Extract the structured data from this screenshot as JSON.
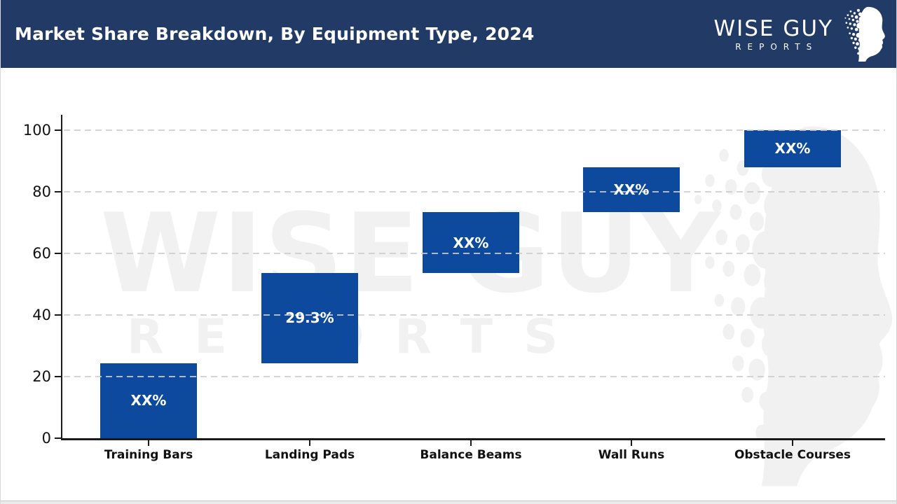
{
  "header": {
    "title": "Market Share Breakdown, By Equipment Type, 2024",
    "logo": {
      "line1": "WISE GUY",
      "line2": "REPORTS"
    }
  },
  "watermark": {
    "line1": "WISE GUY",
    "line2": "REPORTS"
  },
  "colors": {
    "header_bg": "#213A66",
    "title_text": "#FFFFFF",
    "bar": "#0D4A9E",
    "bar_label": "#FFFFFF",
    "axis": "#1A1A1A",
    "grid": "#D4D4D4",
    "watermark": "#F1F1F1"
  },
  "chart_data": {
    "type": "bar",
    "subtype": "floating-waterfall",
    "title": "Market Share Breakdown, By Equipment Type, 2024",
    "categories": [
      "Training Bars",
      "Landing Pads",
      "Balance Beams",
      "Wall Runs",
      "Obstacle Courses"
    ],
    "bars": [
      {
        "category": "Training Bars",
        "start": 0,
        "end": 24.4,
        "value": 24.4,
        "label": "XX%"
      },
      {
        "category": "Landing Pads",
        "start": 24.4,
        "end": 53.7,
        "value": 29.3,
        "label": "29.3%"
      },
      {
        "category": "Balance Beams",
        "start": 53.7,
        "end": 73.3,
        "value": 19.6,
        "label": "XX%"
      },
      {
        "category": "Wall Runs",
        "start": 73.3,
        "end": 88.0,
        "value": 14.7,
        "label": "XX%"
      },
      {
        "category": "Obstacle Courses",
        "start": 88.0,
        "end": 100.0,
        "value": 12.0,
        "label": "XX%"
      }
    ],
    "yticks": [
      0,
      20,
      40,
      60,
      80,
      100
    ],
    "ylim": [
      0,
      105
    ],
    "xlabel": "",
    "ylabel": "",
    "grid": true,
    "legend": false
  }
}
